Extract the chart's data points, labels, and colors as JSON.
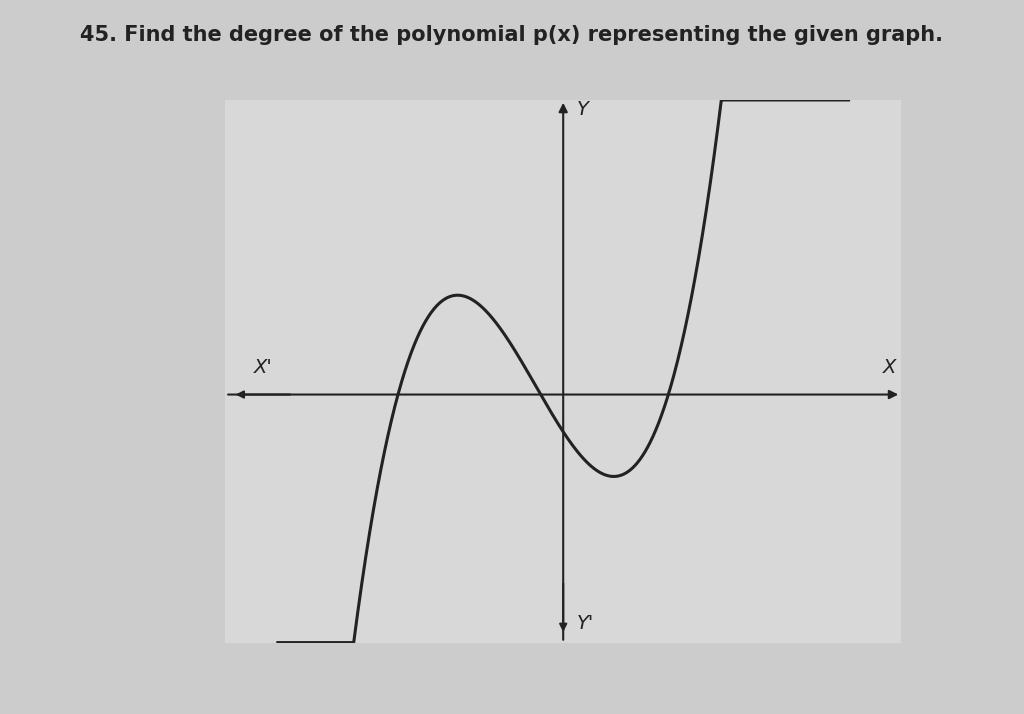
{
  "title": "45. Find the degree of the polynomial p(x) representing the given graph.",
  "title_fontsize": 15,
  "title_color": "#222222",
  "background_color": "#cccccc",
  "box_background": "#d8d8d8",
  "box_edge_color": "#888888",
  "curve_color": "#222222",
  "curve_linewidth": 2.2,
  "axis_color": "#222222",
  "axis_linewidth": 1.5,
  "xlim": [
    -4.5,
    4.5
  ],
  "ylim": [
    -3.2,
    3.8
  ],
  "x_label": "X",
  "x_prime_label": "X'",
  "y_label": "Y",
  "y_prime_label": "Y'",
  "label_fontsize": 14,
  "poly_roots": [
    -2.2,
    -0.3,
    1.4
  ],
  "poly_scale": 0.52
}
